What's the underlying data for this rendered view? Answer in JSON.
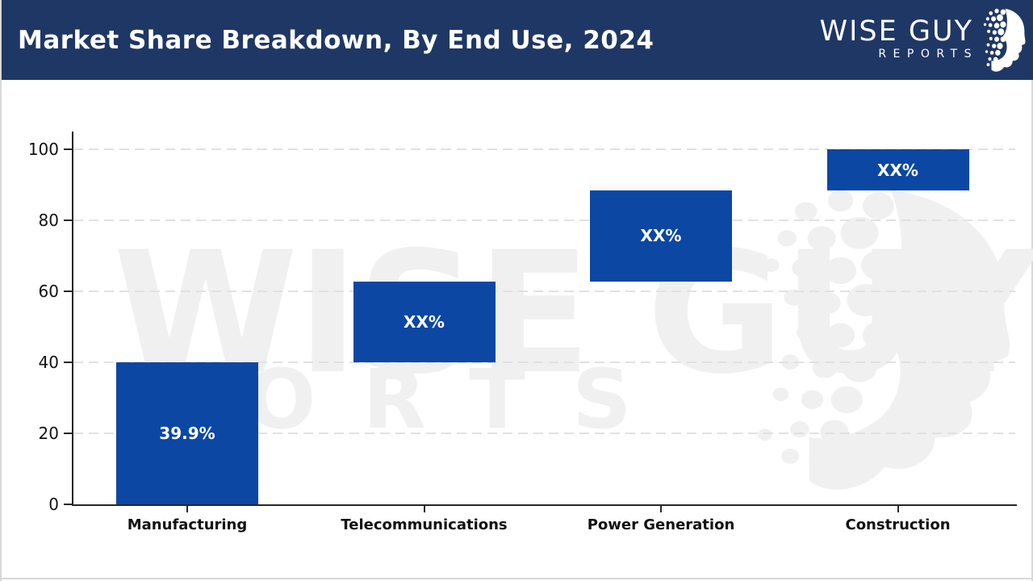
{
  "header": {
    "title": "Market Share Breakdown, By End Use, 2024",
    "logo": {
      "line1": "WISE GUY",
      "line2": "REPORTS"
    }
  },
  "watermark": {
    "line1": "WISE GUY",
    "line2": "PORTS"
  },
  "colors": {
    "header_bg": "#1f3765",
    "bar": "#0c47a3",
    "axis": "#262626",
    "grid": "#e1e1e1",
    "watermark": "#f0f0f0",
    "page_border": "#d8d8d8",
    "data_label": "#ffffff"
  },
  "chart_data": {
    "type": "bar",
    "subtype": "waterfall",
    "title": "Market Share Breakdown, By End Use, 2024",
    "categories": [
      "Manufacturing",
      "Telecommunications",
      "Power Generation",
      "Construction"
    ],
    "segments": [
      {
        "label": "Manufacturing",
        "start": 0,
        "end": 39.9,
        "data_label": "39.9%"
      },
      {
        "label": "Telecommunications",
        "start": 39.9,
        "end": 62.8,
        "data_label": "XX%"
      },
      {
        "label": "Power Generation",
        "start": 62.8,
        "end": 88.4,
        "data_label": "XX%"
      },
      {
        "label": "Construction",
        "start": 88.4,
        "end": 100,
        "data_label": "XX%"
      }
    ],
    "xlabel": "",
    "ylabel": "",
    "ylim": [
      0,
      105
    ],
    "yticks": [
      0,
      20,
      40,
      60,
      80,
      100
    ],
    "ytick_labels": [
      "0",
      "20",
      "40",
      "60",
      "80",
      "100"
    ],
    "grid": "horizontal-dashed",
    "legend": "none",
    "bar_color": "#0c47a3",
    "data_label_color": "#ffffff"
  }
}
